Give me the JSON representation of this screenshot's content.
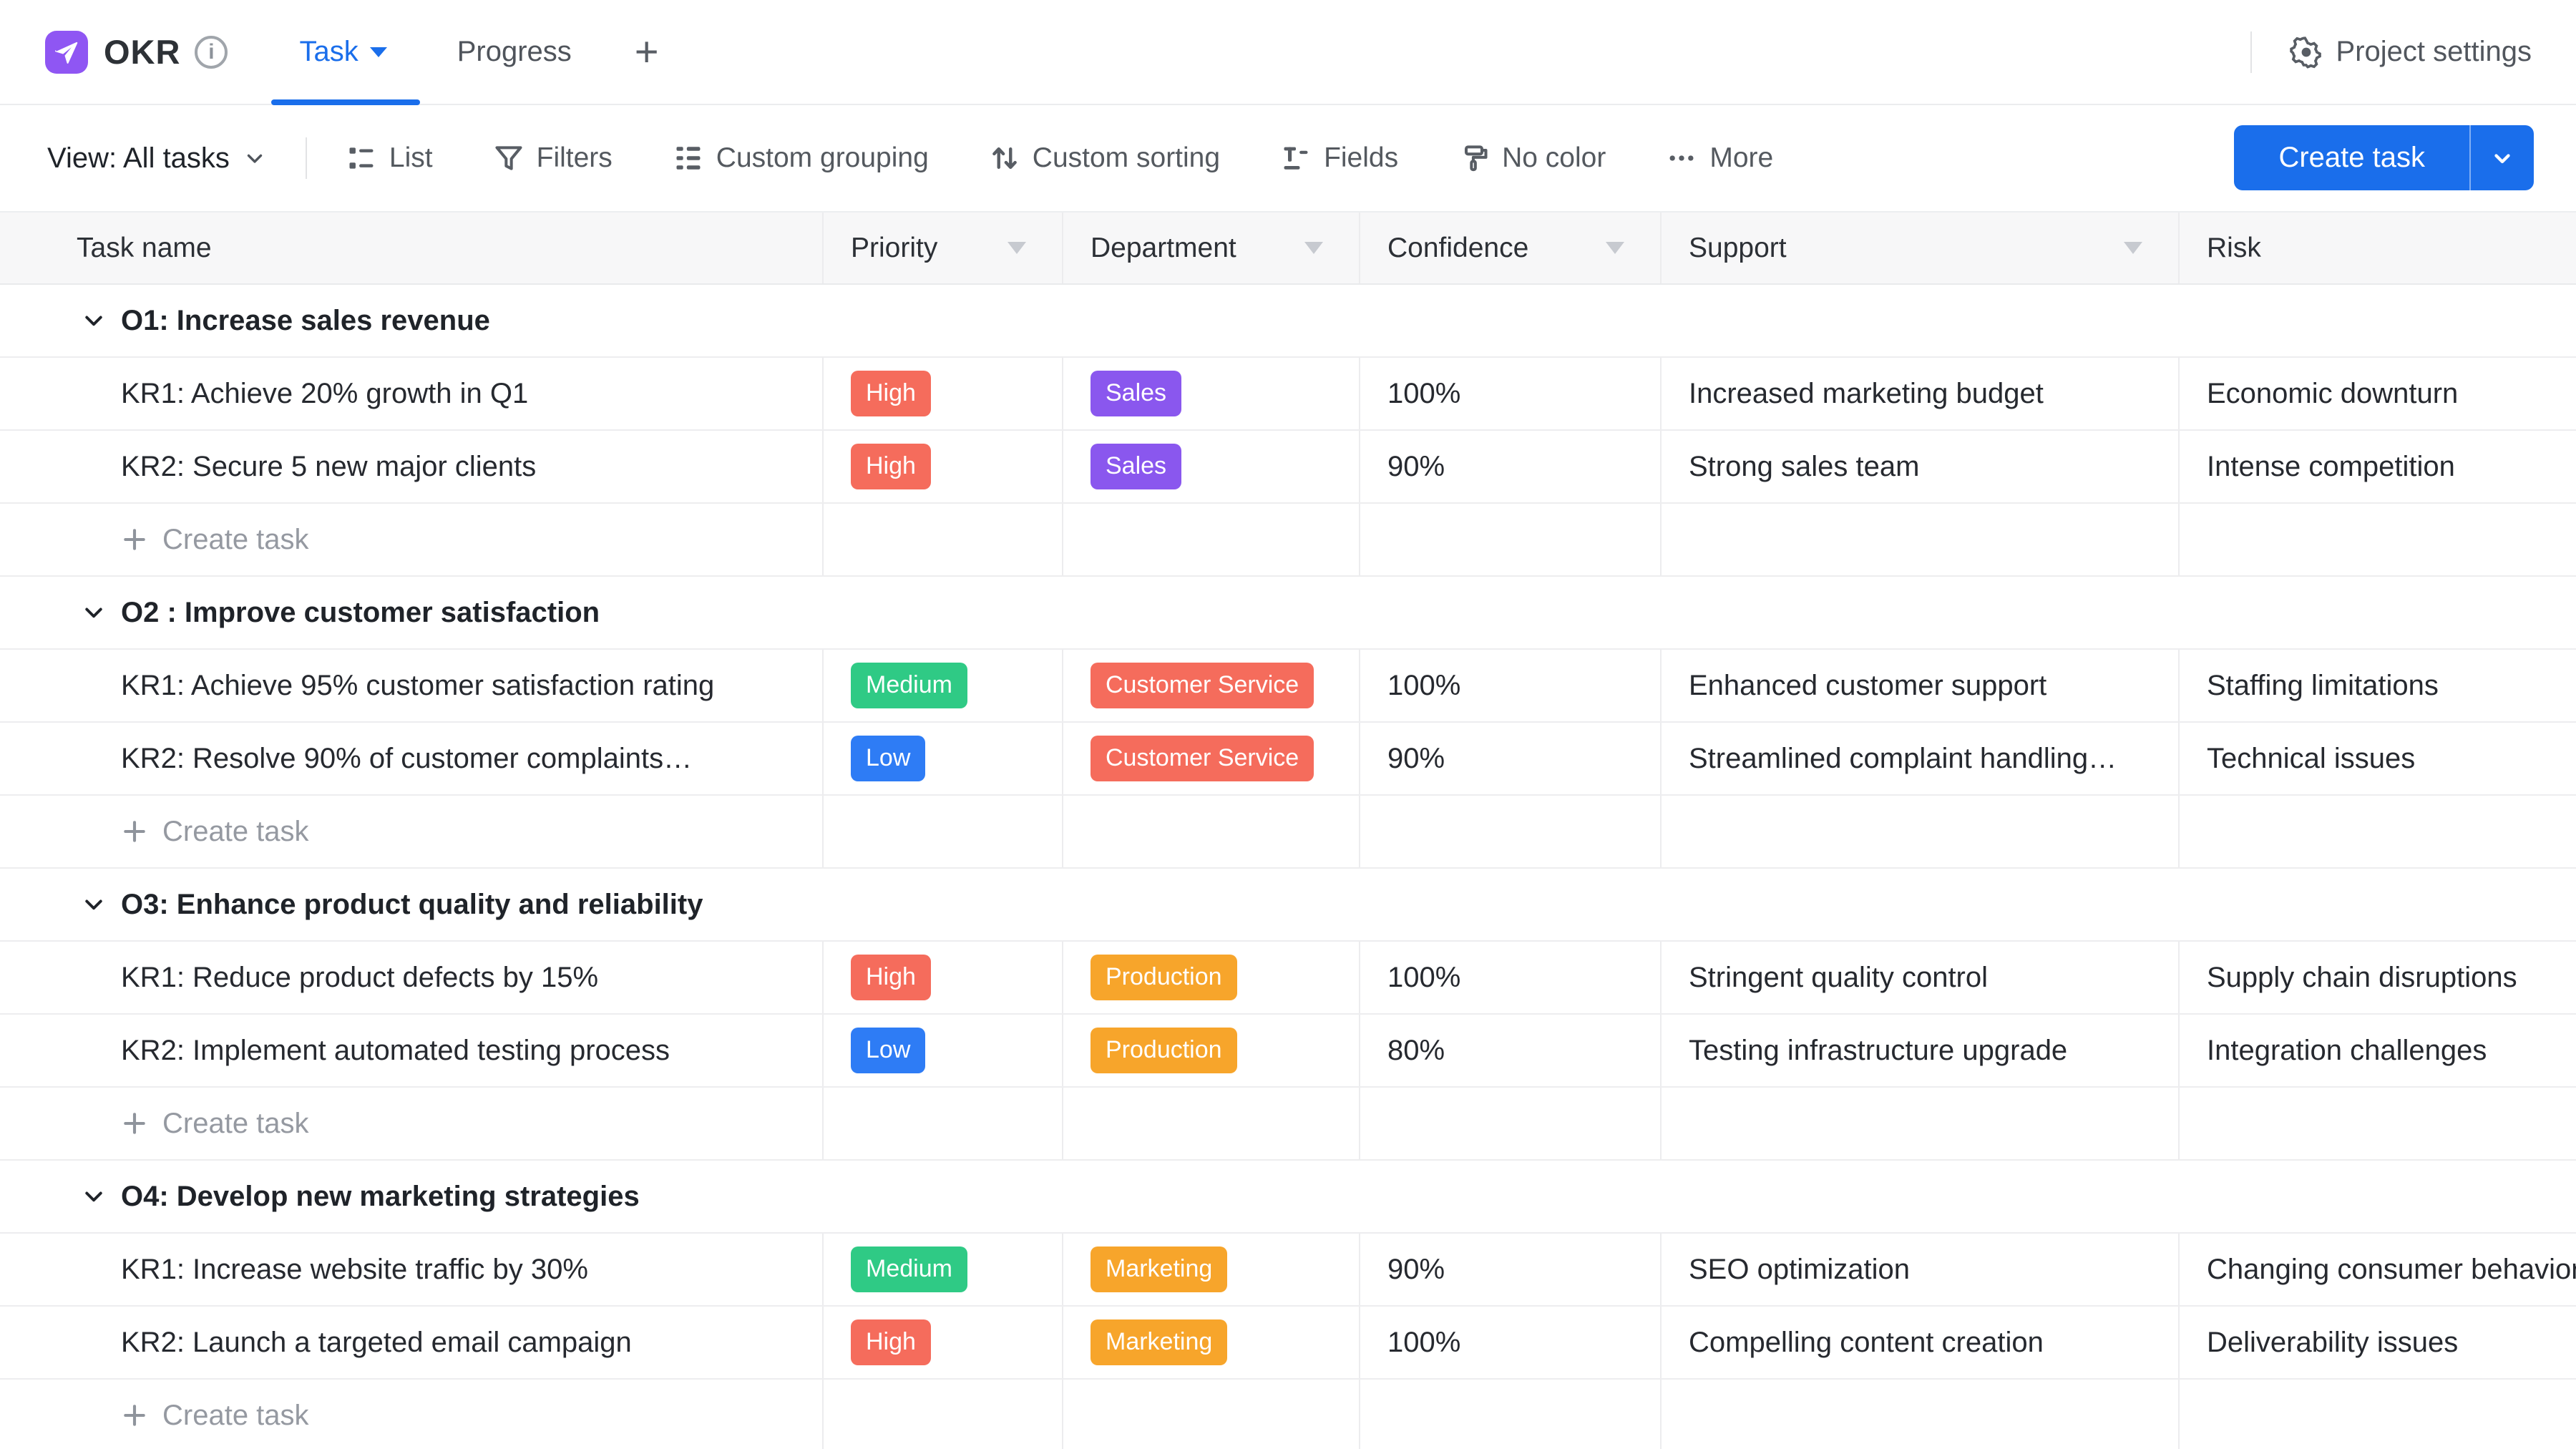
{
  "header": {
    "app_title": "OKR",
    "tabs": [
      {
        "label": "Task",
        "active": true
      },
      {
        "label": "Progress",
        "active": false
      }
    ],
    "plus_label": "+",
    "settings_label": "Project settings"
  },
  "toolbar": {
    "view_label": "View: All tasks",
    "buttons": [
      {
        "icon": "list-icon",
        "label": "List"
      },
      {
        "icon": "filter-icon",
        "label": "Filters"
      },
      {
        "icon": "grouping-icon",
        "label": "Custom grouping"
      },
      {
        "icon": "sorting-icon",
        "label": "Custom sorting"
      },
      {
        "icon": "fields-icon",
        "label": "Fields"
      },
      {
        "icon": "paint-roller-icon",
        "label": "No color"
      },
      {
        "icon": "more-icon",
        "label": "More"
      }
    ],
    "create_label": "Create task"
  },
  "table": {
    "columns": [
      {
        "label": "Task name",
        "sortable": false
      },
      {
        "label": "Priority",
        "sortable": true
      },
      {
        "label": "Department",
        "sortable": true
      },
      {
        "label": "Confidence",
        "sortable": true
      },
      {
        "label": "Support",
        "sortable": true
      },
      {
        "label": "Risk",
        "sortable": false
      }
    ],
    "groups": [
      {
        "label": "O1:  Increase sales revenue",
        "rows": [
          {
            "task": "KR1: Achieve 20% growth in Q1",
            "priority": "High",
            "department": "Sales",
            "confidence": "100%",
            "support": "Increased marketing budget",
            "risk": "Economic downturn"
          },
          {
            "task": "KR2: Secure 5 new major clients",
            "priority": "High",
            "department": "Sales",
            "confidence": "90%",
            "support": "Strong sales team",
            "risk": "Intense competition"
          }
        ],
        "create_task_label": "Create task"
      },
      {
        "label": "O2 : Improve customer satisfaction",
        "rows": [
          {
            "task": "KR1: Achieve 95% customer satisfaction rating",
            "priority": "Medium",
            "department": "Customer Service",
            "confidence": "100%",
            "support": "Enhanced customer support",
            "risk": "Staffing limitations"
          },
          {
            "task": "KR2: Resolve 90% of customer complaints…",
            "priority": "Low",
            "department": "Customer Service",
            "confidence": "90%",
            "support": "Streamlined complaint handling…",
            "risk": "Technical issues"
          }
        ],
        "create_task_label": "Create task"
      },
      {
        "label": "O3: Enhance product quality and reliability",
        "rows": [
          {
            "task": "KR1: Reduce product defects by 15%",
            "priority": "High",
            "department": "Production",
            "confidence": "100%",
            "support": "Stringent quality control",
            "risk": "Supply chain disruptions"
          },
          {
            "task": "KR2: Implement automated testing process",
            "priority": "Low",
            "department": "Production",
            "confidence": "80%",
            "support": "Testing infrastructure upgrade",
            "risk": "Integration challenges"
          }
        ],
        "create_task_label": "Create task"
      },
      {
        "label": "O4: Develop new marketing strategies",
        "rows": [
          {
            "task": "KR1: Increase website traffic by 30%",
            "priority": "Medium",
            "department": "Marketing",
            "confidence": "90%",
            "support": "SEO optimization",
            "risk": "Changing consumer behavior"
          },
          {
            "task": "KR2: Launch a targeted email campaign",
            "priority": "High",
            "department": "Marketing",
            "confidence": "100%",
            "support": "Compelling content creation",
            "risk": "Deliverability issues"
          }
        ],
        "create_task_label": "Create task"
      }
    ]
  },
  "colors": {
    "accent": "#1a6eeb",
    "logo": "#8f56f3",
    "badges": {
      "High": "#f56c5c",
      "Medium": "#2fca85",
      "Low": "#2e7cf5",
      "Sales": "#8a57ee",
      "Customer Service": "#f56c5c",
      "Production": "#f7a52b",
      "Marketing": "#f7a52b"
    }
  }
}
